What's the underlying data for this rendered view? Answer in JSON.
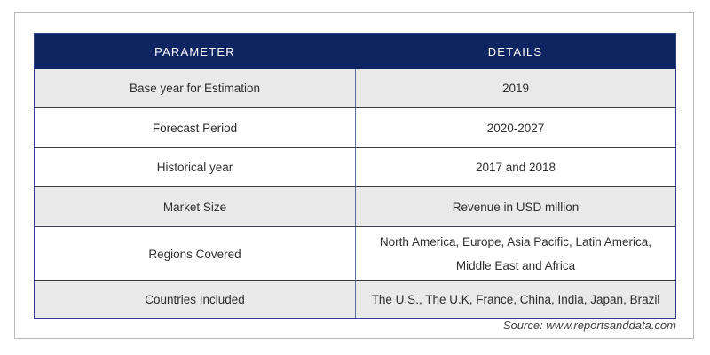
{
  "chart_data": {
    "type": "table",
    "columns": [
      "PARAMETER",
      "DETAILS"
    ],
    "rows": [
      {
        "parameter": "Base year for Estimation",
        "details": "2019"
      },
      {
        "parameter": "Forecast Period",
        "details": "2020-2027"
      },
      {
        "parameter": "Historical year",
        "details": "2017 and 2018"
      },
      {
        "parameter": "Market Size",
        "details": "Revenue in USD million"
      },
      {
        "parameter": "Regions Covered",
        "details": "North America, Europe, Asia Pacific, Latin America, Middle East and Africa"
      },
      {
        "parameter": "Countries Included",
        "details": "The U.S., The  U.K, France, China, India, Japan, Brazil"
      }
    ]
  },
  "source": "Source: www.reportsanddata.com",
  "colors": {
    "header_bg": "#0f2562",
    "header_text": "#ffffff",
    "shaded_row_bg": "#e9e9e9",
    "row_bg": "#ffffff",
    "table_border": "#2b4484",
    "row_divider": "#3e3e48",
    "column_divider": "#5c6f9d",
    "body_text": "#2e2e2e",
    "source_text": "#3f3f3f",
    "frame_border": "#b9b9b9"
  }
}
